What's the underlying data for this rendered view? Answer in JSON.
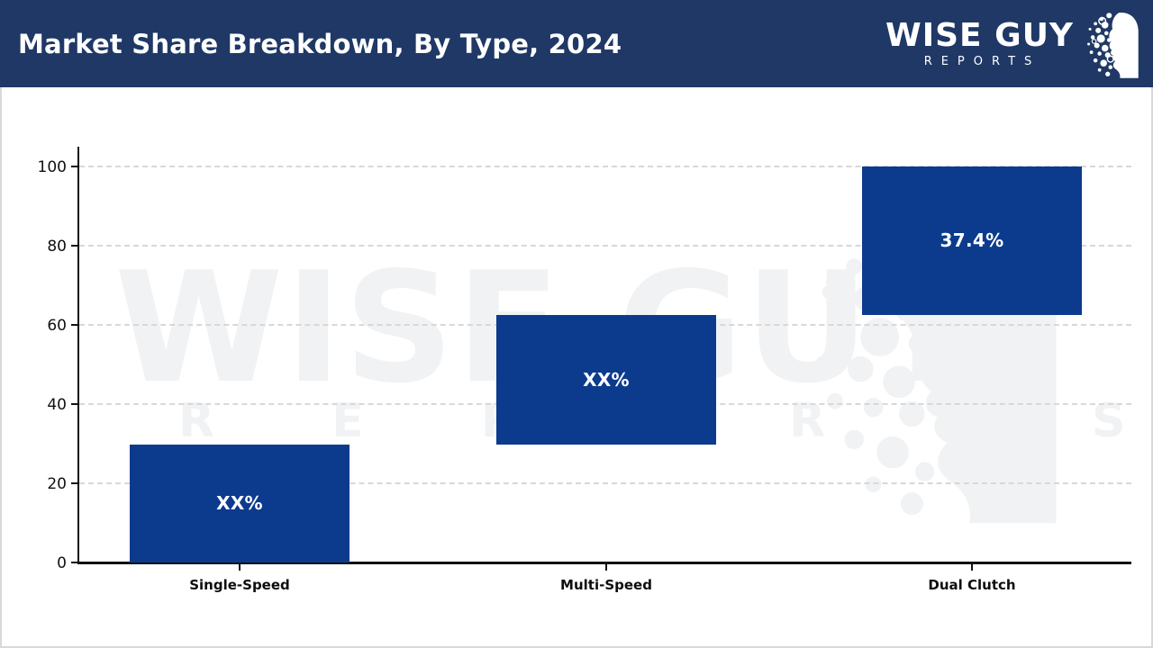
{
  "header": {
    "title": "Market Share Breakdown, By Type, 2024",
    "logo": {
      "line1": "WISE GUY",
      "line2": "REPORTS",
      "icon": "wiseguy-face-logo"
    }
  },
  "watermark": {
    "line1": "WISE GUY",
    "line2": "R E P O R T S"
  },
  "colors": {
    "header_bg": "#1f3866",
    "bar": "#0c3b8d",
    "grid": "#d8d8d8",
    "axis": "#111111",
    "bar_label_text": "#ffffff",
    "watermark": "#f1f2f4",
    "border": "#d9d9d9"
  },
  "chart_data": {
    "type": "bar",
    "subtype": "waterfall",
    "title": "Market Share Breakdown, By Type, 2024",
    "categories": [
      "Single-Speed",
      "Multi-Speed",
      "Dual Clutch"
    ],
    "segments": [
      {
        "category": "Single-Speed",
        "start": 0,
        "end": 29.8,
        "label": "XX%"
      },
      {
        "category": "Multi-Speed",
        "start": 29.8,
        "end": 62.6,
        "label": "XX%"
      },
      {
        "category": "Dual Clutch",
        "start": 62.6,
        "end": 100,
        "label": "37.4%"
      }
    ],
    "ylim": [
      0,
      100
    ],
    "yticks": [
      0,
      20,
      40,
      60,
      80,
      100
    ],
    "xlabel": "",
    "ylabel": "",
    "grid": "horizontal-dashed",
    "legend": "none"
  }
}
